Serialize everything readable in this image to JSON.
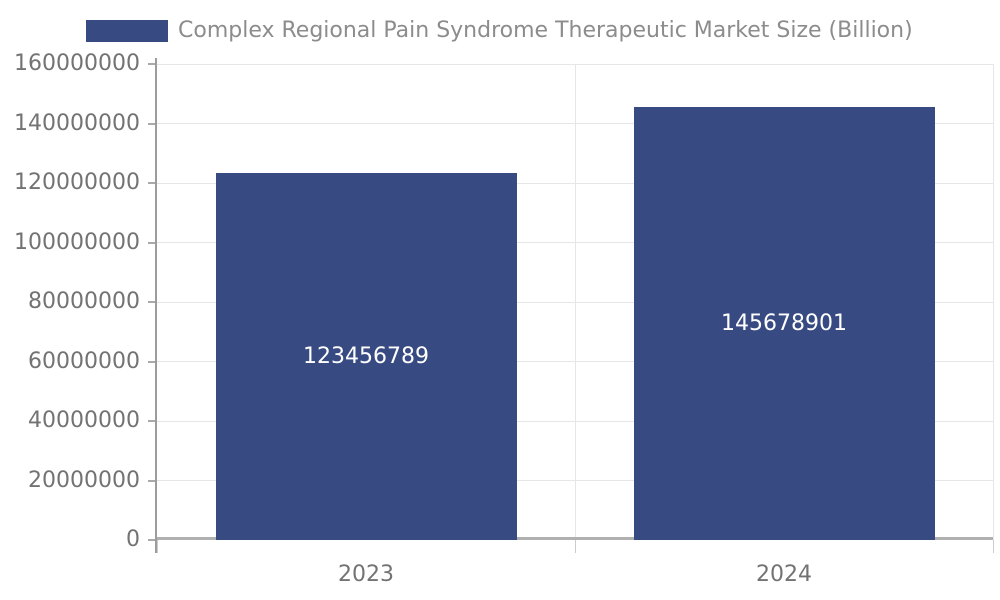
{
  "chart_data": {
    "type": "bar",
    "title": "Complex Regional Pain Syndrome Therapeutic Market Size (Billion)",
    "legend_position": "top",
    "categories": [
      "2023",
      "2024"
    ],
    "values": [
      123456789,
      145678901
    ],
    "data_labels": [
      "123456789",
      "145678901"
    ],
    "ylim": [
      0,
      160000000
    ],
    "ytick_values": [
      0,
      20000000,
      40000000,
      60000000,
      80000000,
      100000000,
      120000000,
      140000000,
      160000000
    ],
    "ytick_labels": [
      "0",
      "20000000",
      "40000000",
      "60000000",
      "80000000",
      "100000000",
      "120000000",
      "140000000",
      "160000000"
    ],
    "xlabel": "",
    "ylabel": "",
    "grid": true,
    "bar_color": "#374B82",
    "data_label_color": "#ffffff"
  },
  "colors": {
    "background": "#ffffff",
    "bar": "#374B82",
    "grid_line": "#e6e6e6",
    "axis_line_x": "#b0b0b0",
    "axis_line_y": "#9c9c9c",
    "tick_label_text": "#737373",
    "title_text": "#8c8c8c"
  }
}
